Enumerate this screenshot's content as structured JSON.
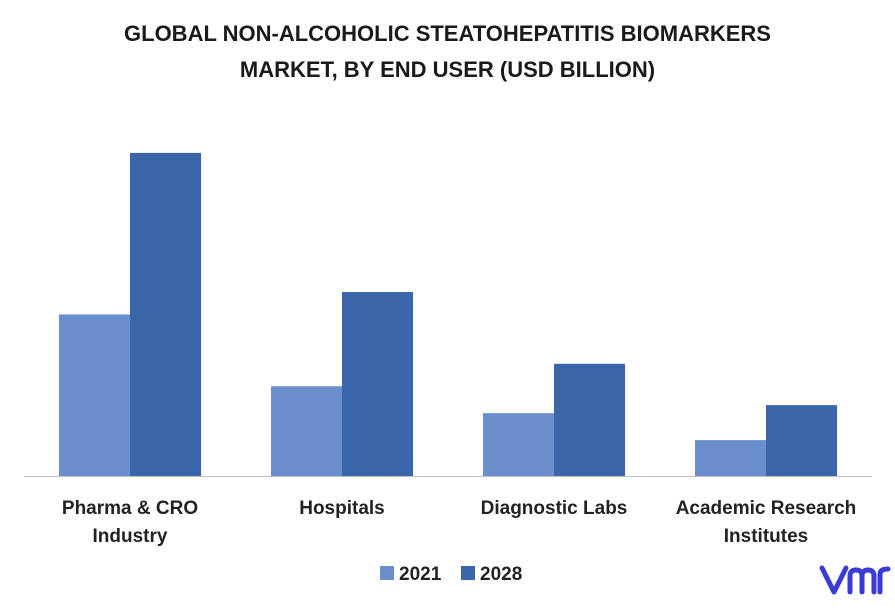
{
  "title_lines": [
    "GLOBAL NON-ALCOHOLIC STEATOHEPATITIS BIOMARKERS",
    "MARKET, BY END USER (USD BILLION)"
  ],
  "chart_data": {
    "type": "bar",
    "title": "GLOBAL NON-ALCOHOLIC STEATOHEPATITIS BIOMARKERS MARKET, BY END USER (USD BILLION)",
    "categories": [
      [
        "Pharma & CRO",
        "Industry"
      ],
      [
        "Hospitals"
      ],
      [
        "Diagnostic Labs"
      ],
      [
        "Academic Research",
        "Institutes"
      ]
    ],
    "series": [
      {
        "name": "2021",
        "color": "#6a8fcc",
        "values": [
          1.8,
          1.0,
          0.7,
          0.4
        ]
      },
      {
        "name": "2028",
        "color": "#3a66a9",
        "values": [
          3.6,
          2.05,
          1.25,
          0.79
        ]
      }
    ],
    "ylim": [
      0,
      4.0
    ],
    "grid": false,
    "legend_position": "bottom-center"
  },
  "logo": {
    "name": "vmr-logo",
    "color": "#3b3bd6"
  }
}
